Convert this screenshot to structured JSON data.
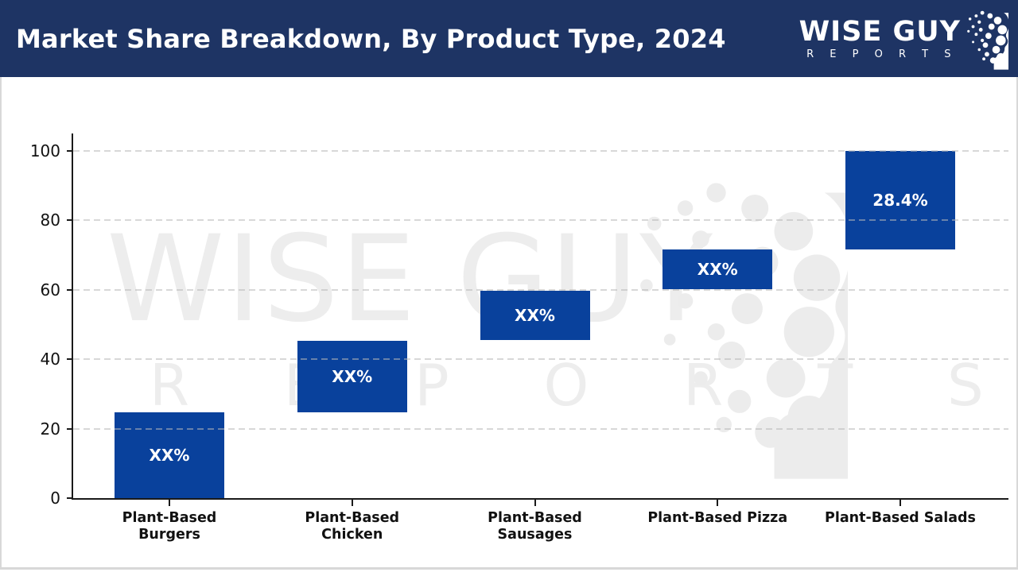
{
  "header": {
    "title": "Market Share Breakdown, By Product Type, 2024",
    "logo": {
      "line1": "WISE GUY",
      "line2": "R E P O R T S"
    },
    "bg_color": "#1e3464"
  },
  "watermark": {
    "line1": "WISE GUY",
    "line2": "R E P O R T S"
  },
  "chart_data": {
    "type": "bar",
    "subtype": "waterfall-floating-bars",
    "title": "Market Share Breakdown, By Product Type, 2024",
    "categories": [
      "Plant-Based\nBurgers",
      "Plant-Based\nChicken",
      "Plant-Based\nSausages",
      "Plant-Based Pizza",
      "Plant-Based Salads"
    ],
    "segments": [
      {
        "start": 0,
        "end": 24.8,
        "label": "XX%"
      },
      {
        "start": 24.8,
        "end": 45.3,
        "label": "XX%"
      },
      {
        "start": 45.5,
        "end": 59.7,
        "label": "XX%"
      },
      {
        "start": 60.1,
        "end": 71.6,
        "label": "XX%"
      },
      {
        "start": 71.6,
        "end": 100,
        "label": "28.4%"
      }
    ],
    "y_ticks": [
      0,
      20,
      40,
      60,
      80,
      100
    ],
    "ylim": [
      0,
      105
    ],
    "xlabel": "",
    "ylabel": "",
    "grid": "horizontal-dashed",
    "legend": "none",
    "bar_color": "#09419c",
    "bar_label_color": "#ffffff",
    "axis_color": "#1a1a1a",
    "gridline_color": "#d9d9d9"
  }
}
